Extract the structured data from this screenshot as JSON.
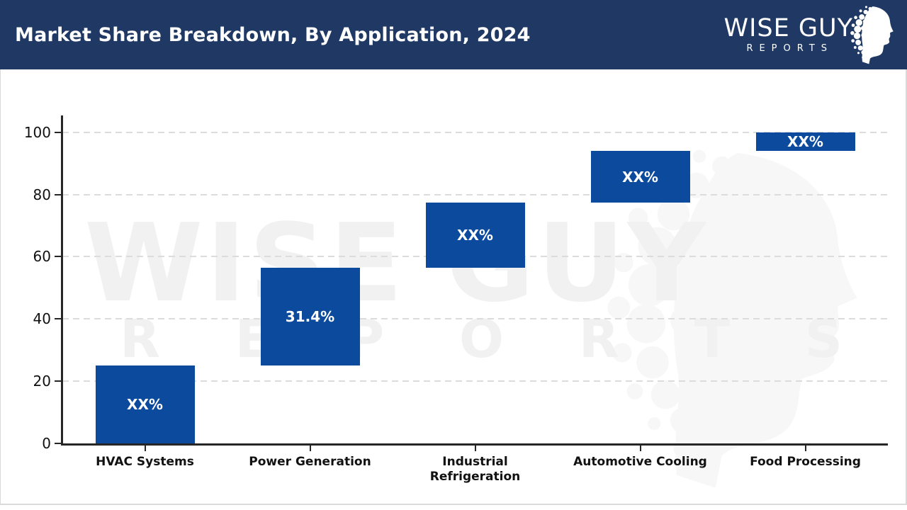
{
  "header": {
    "title": "Market Share Breakdown, By Application, 2024",
    "logo_line1": "WISE GUY",
    "logo_line2": "REPORTS"
  },
  "watermark": {
    "line1": "WISE GUY",
    "line2": "R E P O R T S"
  },
  "colors": {
    "header_bg": "#1f3864",
    "bar": "#0c4a9e",
    "axis": "#262626",
    "gridline": "#dcdcdc",
    "bar_label": "#ffffff"
  },
  "chart_data": {
    "type": "bar",
    "subtype": "waterfall",
    "title": "Market Share Breakdown, By Application, 2024",
    "categories": [
      "HVAC Systems",
      "Power Generation",
      "Industrial\nRefrigeration",
      "Automotive Cooling",
      "Food Processing"
    ],
    "segments": [
      {
        "category": "HVAC Systems",
        "start": 0,
        "end": 25,
        "value_label": "XX%"
      },
      {
        "category": "Power Generation",
        "start": 25,
        "end": 56.4,
        "value_label": "31.4%"
      },
      {
        "category": "Industrial Refrigeration",
        "start": 56.4,
        "end": 77.4,
        "value_label": "XX%"
      },
      {
        "category": "Automotive Cooling",
        "start": 77.4,
        "end": 94,
        "value_label": "XX%"
      },
      {
        "category": "Food Processing",
        "start": 94,
        "end": 100,
        "value_label": "XX%"
      }
    ],
    "yticks": [
      0,
      20,
      40,
      60,
      80,
      100
    ],
    "ylim": [
      0,
      105.4
    ],
    "xlabel": "",
    "ylabel": "",
    "grid": "horizontal-dashed",
    "legend": "none"
  }
}
